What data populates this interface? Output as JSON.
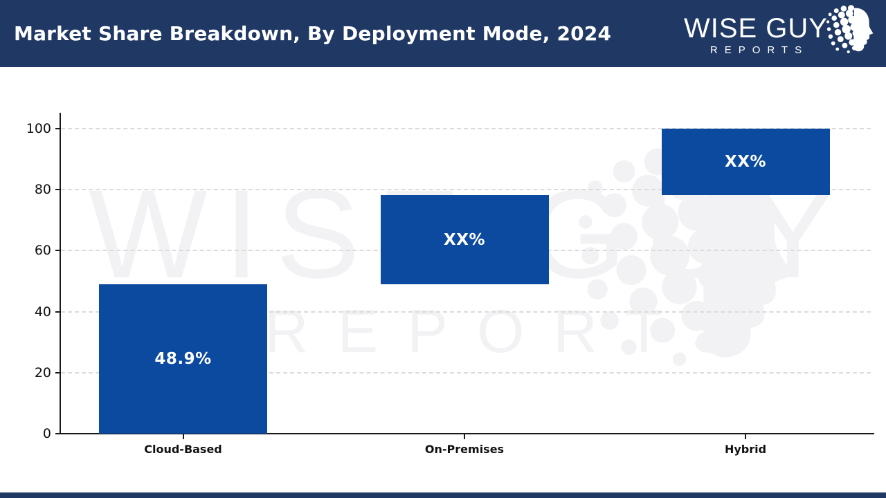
{
  "header": {
    "title": "Market Share Breakdown, By Deployment Mode, 2024",
    "logo": {
      "primary": "WISE GUY",
      "secondary": "REPORTS"
    }
  },
  "watermark": {
    "primary": "WISE GUY",
    "secondary": "REPORTS"
  },
  "chart_data": {
    "type": "bar",
    "subtype": "floating-segment-bars",
    "title": "Market Share Breakdown, By Deployment Mode, 2024",
    "categories": [
      "Cloud-Based",
      "On-Premises",
      "Hybrid"
    ],
    "bars": [
      {
        "category": "Cloud-Based",
        "label": "48.9%",
        "start": 0,
        "end": 48.9
      },
      {
        "category": "On-Premises",
        "label": "XX%",
        "start": 48.9,
        "end": 78.2
      },
      {
        "category": "Hybrid",
        "label": "XX%",
        "start": 78.2,
        "end": 100
      }
    ],
    "xlabel": "",
    "ylabel": "",
    "ylim": [
      0,
      100
    ],
    "yticks": [
      0,
      20,
      40,
      60,
      80,
      100
    ],
    "grid": {
      "horizontal": true,
      "style": "dashed"
    },
    "legend": "none"
  },
  "colors": {
    "header_bg": "#203864",
    "footer_bg": "#203864",
    "bar": "#0b4a9f",
    "bar_label": "#ffffff",
    "grid": "#dbdbdb",
    "axis": "#1a1a1a",
    "watermark": "#f2f2f4"
  }
}
